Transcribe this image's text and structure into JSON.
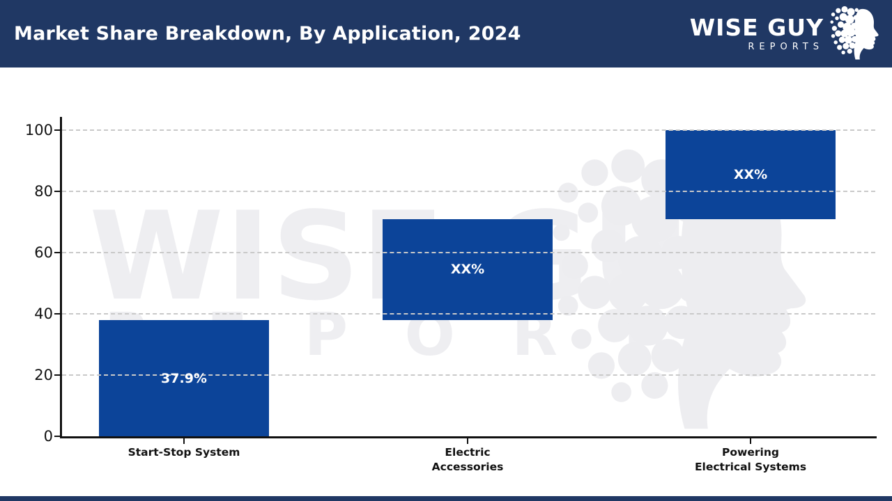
{
  "header": {
    "title": "Market Share Breakdown, By Application, 2024",
    "brand": {
      "line1": "WISE GUY",
      "line2": "REPORTS"
    }
  },
  "watermark": {
    "line1": "WISE GUY",
    "line2": "REPORTS"
  },
  "colors": {
    "header_navy": "#203864",
    "bar_blue": "#0c4499",
    "gridline_gray": "#c9c9c9",
    "axis_black": "#111111",
    "watermark_gray": "#eeeef1"
  },
  "chart_data": {
    "type": "bar",
    "subtype": "waterfall",
    "title": "Market Share Breakdown, By Application, 2024",
    "categories": [
      "Start-Stop System",
      "Electric\nAccessories",
      "Powering\nElectrical Systems"
    ],
    "segments": [
      {
        "category": "Start-Stop System",
        "start": 0,
        "end": 37.9,
        "value_label": "37.9%"
      },
      {
        "category": "Electric Accessories",
        "start": 37.9,
        "end": 71,
        "value_label": "XX%"
      },
      {
        "category": "Powering Electrical Systems",
        "start": 71,
        "end": 100,
        "value_label": "XX%"
      }
    ],
    "ylim": [
      0,
      100
    ],
    "yticks": [
      0,
      20,
      40,
      60,
      80,
      100
    ],
    "xlabel": "",
    "ylabel": "",
    "grid": "horizontal-dashed",
    "gridlines_above_bars": true,
    "legend": "none"
  }
}
